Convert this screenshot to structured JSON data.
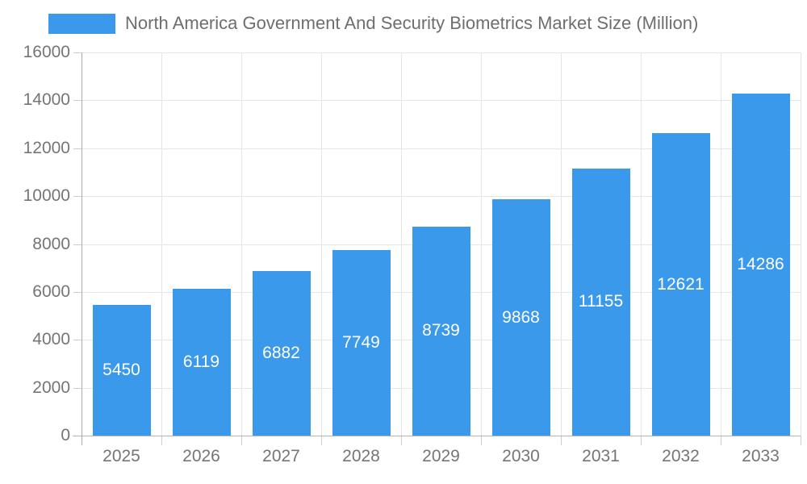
{
  "legend": {
    "swatch_color": "#3b99ec"
  },
  "chart_data": {
    "type": "bar",
    "title": "North America Government And Security Biometrics Market Size (Million)",
    "categories": [
      "2025",
      "2026",
      "2027",
      "2028",
      "2029",
      "2030",
      "2031",
      "2032",
      "2033"
    ],
    "values": [
      5450,
      6119,
      6882,
      7749,
      8739,
      9868,
      11155,
      12621,
      14286
    ],
    "value_labels": [
      "5450",
      "6119",
      "6882",
      "7749",
      "8739",
      "9868",
      "11155",
      "12621",
      "14286"
    ],
    "xlabel": "",
    "ylabel": "",
    "ylim": [
      0,
      16000
    ],
    "ytick_step": 2000,
    "ytick_labels": [
      "0",
      "2000",
      "4000",
      "6000",
      "8000",
      "10000",
      "12000",
      "14000",
      "16000"
    ],
    "grid": true,
    "legend_position": "top-left",
    "bar_color": "#3b99ec",
    "value_label_color": "#ffffff",
    "axis_text_color": "#757575",
    "gridline_color": "#e6e6e6"
  }
}
